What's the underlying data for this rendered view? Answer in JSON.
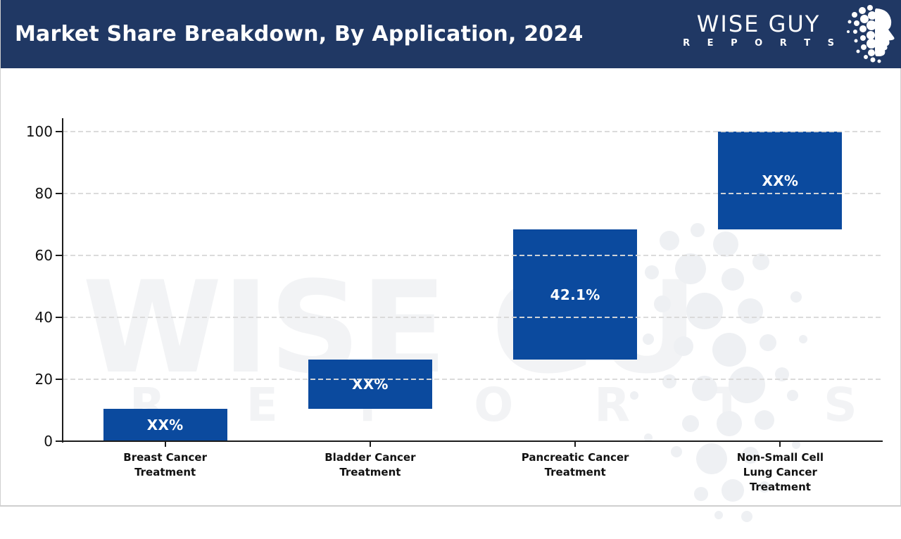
{
  "header": {
    "title": "Market Share Breakdown, By Application, 2024",
    "bg_color": "#203864",
    "logo": {
      "line1": "WISE GUY",
      "line2": "R E P O R T S"
    }
  },
  "watermark": {
    "line1": "WISE GU",
    "line2": "R E P O R T S"
  },
  "chart_data": {
    "type": "bar",
    "subtype": "waterfall-breakdown",
    "title": "Market Share Breakdown, By Application, 2024",
    "categories": [
      "Breast Cancer Treatment",
      "Bladder Cancer Treatment",
      "Pancreatic Cancer Treatment",
      "Non-Small Cell Lung Cancer Treatment"
    ],
    "category_lines": [
      [
        "Breast Cancer",
        "Treatment"
      ],
      [
        "Bladder Cancer",
        "Treatment"
      ],
      [
        "Pancreatic Cancer",
        "Treatment"
      ],
      [
        "Non-Small Cell",
        "Lung Cancer",
        "Treatment"
      ]
    ],
    "bars": [
      {
        "category": "Breast Cancer Treatment",
        "value_label": "XX%",
        "start": 0,
        "end": 10.5
      },
      {
        "category": "Bladder Cancer Treatment",
        "value_label": "XX%",
        "start": 10.5,
        "end": 26.3
      },
      {
        "category": "Pancreatic Cancer Treatment",
        "value_label": "42.1%",
        "start": 26.3,
        "end": 68.4
      },
      {
        "category": "Non-Small Cell Lung Cancer Treatment",
        "value_label": "XX%",
        "start": 68.4,
        "end": 100
      }
    ],
    "ylim": [
      0,
      100
    ],
    "yticks": [
      0,
      20,
      40,
      60,
      80,
      100
    ],
    "xlabel": "",
    "ylabel": "",
    "grid": "horizontal-dashed",
    "gridlines_on_top_of_bars": true,
    "legend": null,
    "bar_color": "#0b4a9e",
    "gridline_color": "#d9d9d9",
    "axis_color": "#1c1c1c",
    "value_label_color": "#ffffff"
  }
}
